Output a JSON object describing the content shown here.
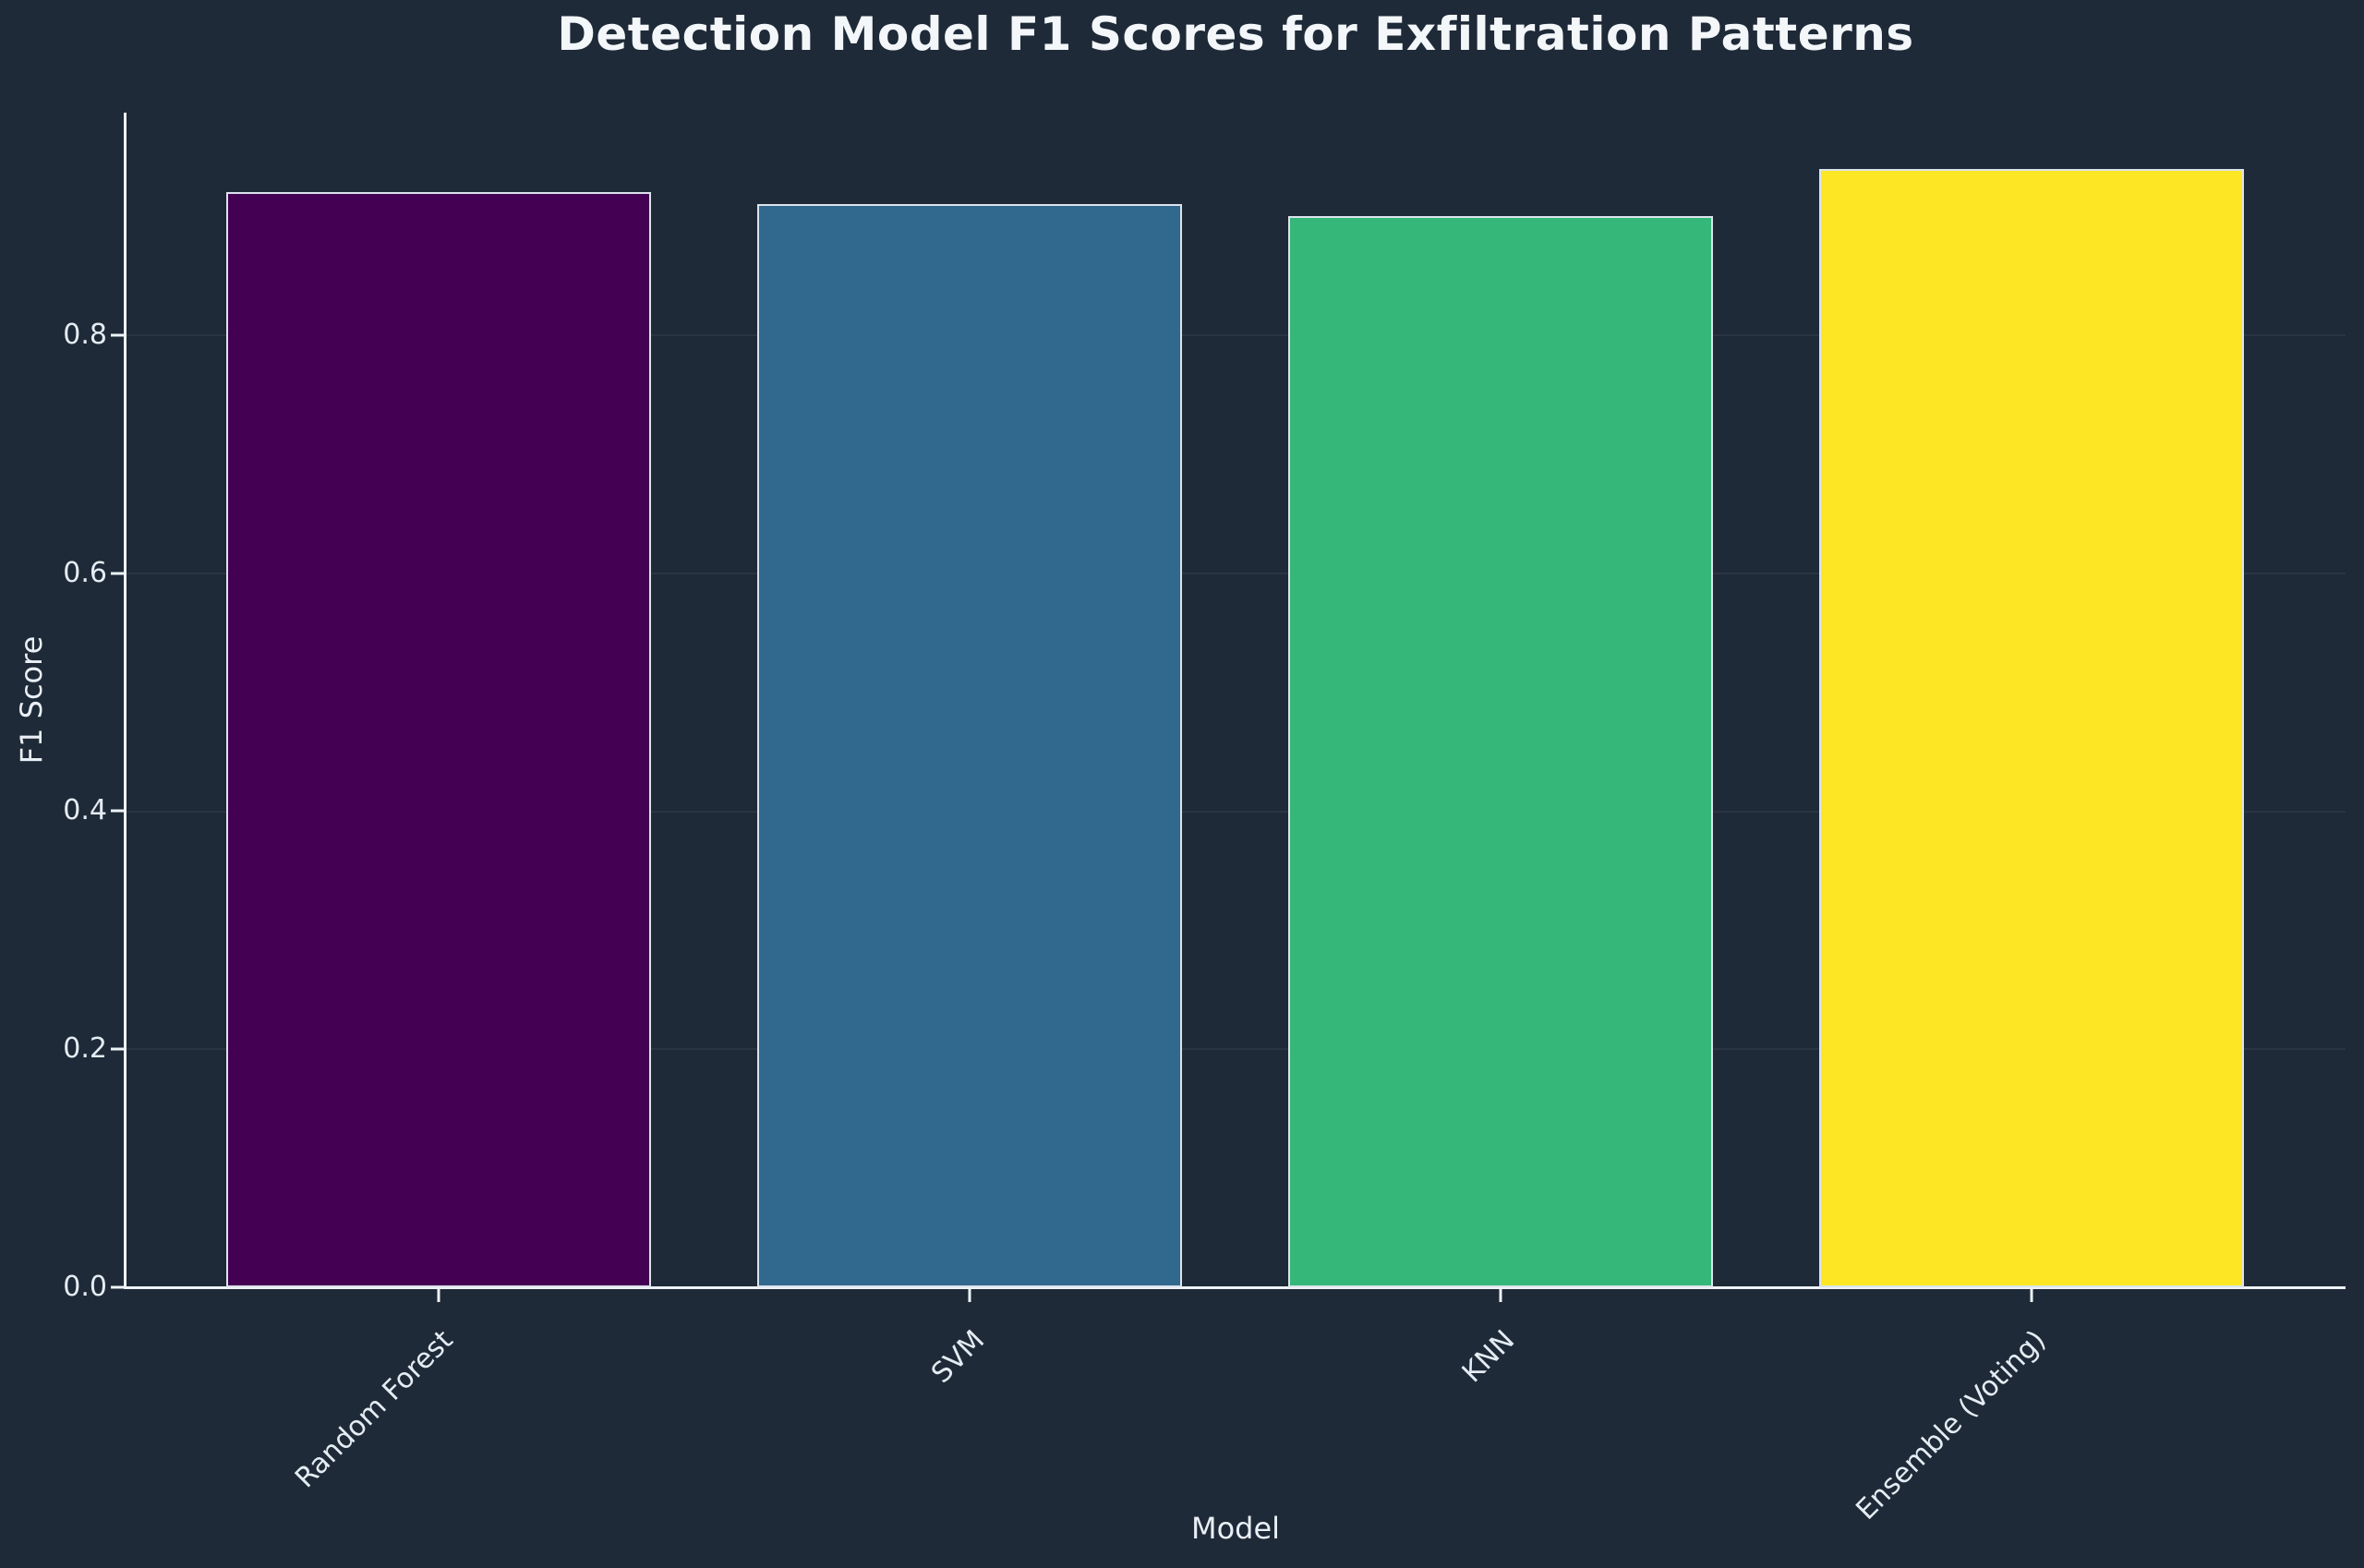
{
  "chart_data": {
    "type": "bar",
    "title": "Detection Model F1 Scores for Exfiltration Patterns",
    "xlabel": "Model",
    "ylabel": "F1 Score",
    "categories": [
      "Random Forest",
      "SVM",
      "KNN",
      "Ensemble (Voting)"
    ],
    "values": [
      0.92,
      0.91,
      0.9,
      0.94
    ],
    "bar_colors": [
      "#440154",
      "#31688e",
      "#35b779",
      "#fde725"
    ],
    "ylim": [
      0,
      0.987
    ],
    "yticks": [
      0.0,
      0.2,
      0.4,
      0.6,
      0.8
    ],
    "ytick_labels": [
      "0.0",
      "0.2",
      "0.4",
      "0.6",
      "0.8"
    ],
    "grid": "horizontal",
    "legend": "none",
    "theme": {
      "background": "#1f2a38",
      "text_color": "#e9eff5",
      "spine_color": "#eef3f7",
      "gridline_color": "rgba(255,255,255,0.055)",
      "bar_edge_color": "#dbe3eb"
    }
  }
}
